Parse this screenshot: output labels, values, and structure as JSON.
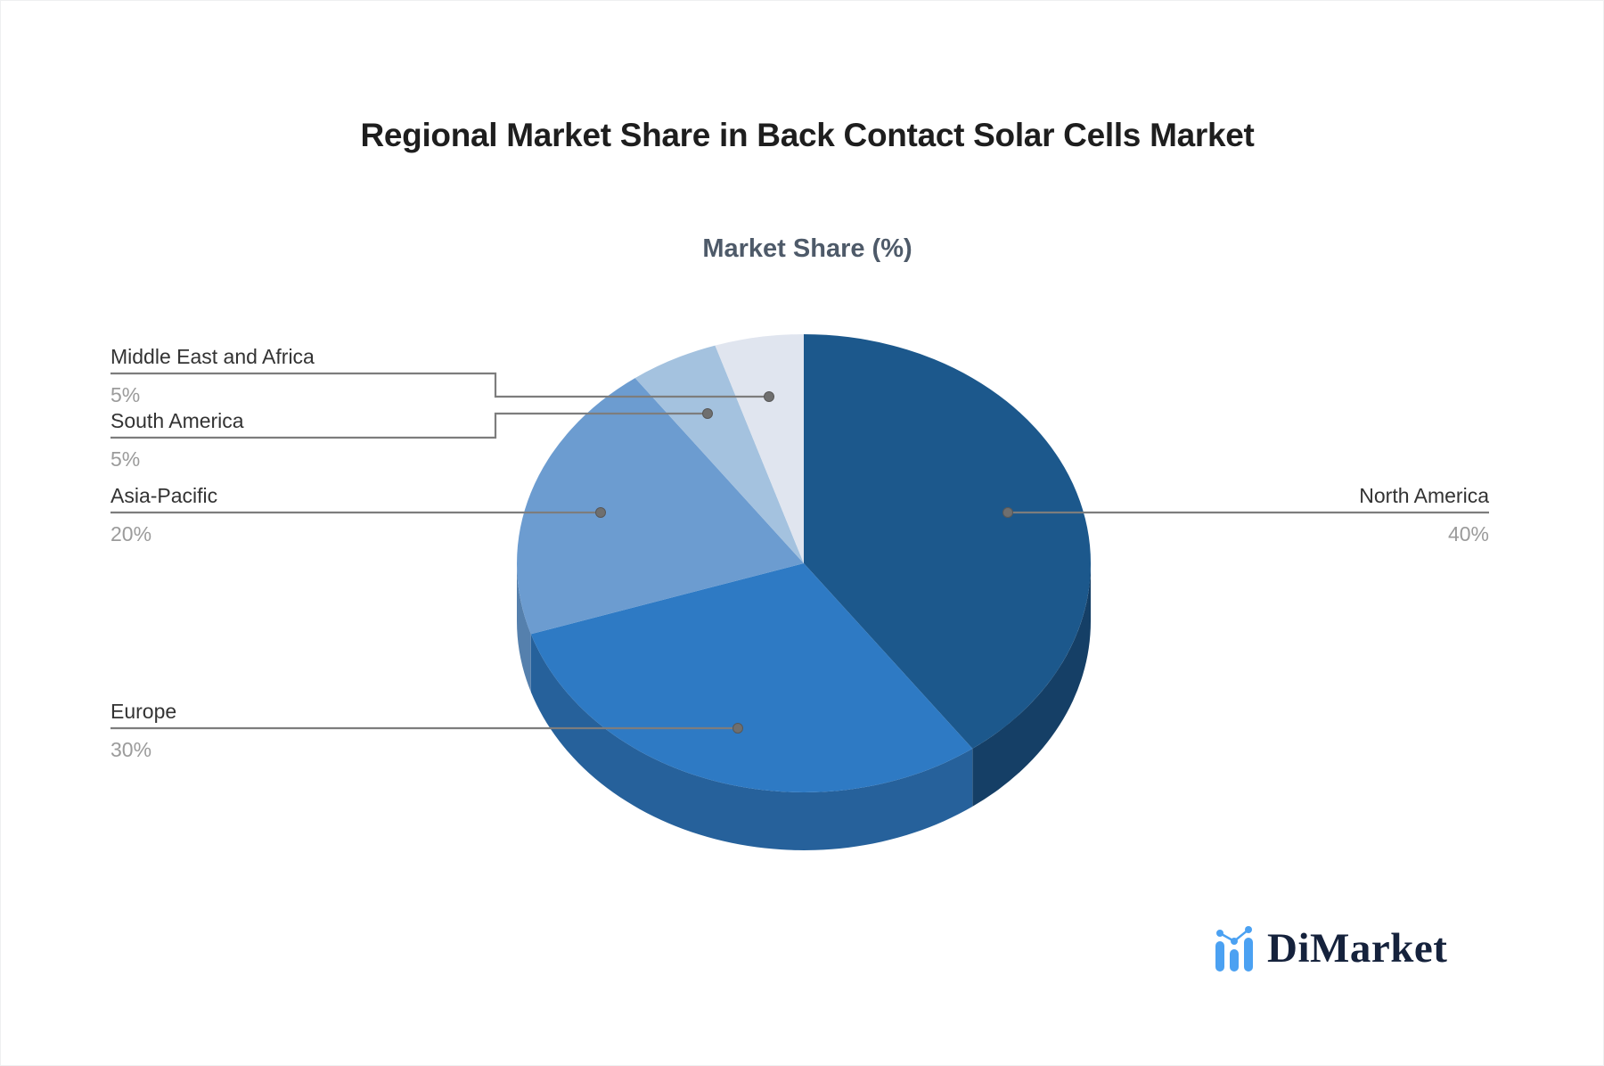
{
  "title": "Regional Market Share in Back Contact Solar Cells Market",
  "subtitle": "Market Share (%)",
  "logo": {
    "text": "DiMarket"
  },
  "chart_data": {
    "type": "pie",
    "title": "Regional Market Share in Back Contact Solar Cells Market",
    "subtitle": "Market Share (%)",
    "unit": "%",
    "style": "3d-pie",
    "direction": "clockwise",
    "start_angle_deg": 0,
    "labels_position": "outside-callout",
    "legend": false,
    "categories": [
      "North America",
      "Europe",
      "Asia-Pacific",
      "South America",
      "Middle East and Africa"
    ],
    "values": [
      40,
      30,
      20,
      5,
      5
    ],
    "slices": [
      {
        "label": "North America",
        "value": 40,
        "display": "40%",
        "color": "#1C588C",
        "rim_color": "#153F66",
        "label_side": "right"
      },
      {
        "label": "Europe",
        "value": 30,
        "display": "30%",
        "color": "#2E7AC4",
        "rim_color": "#26619B",
        "label_side": "left"
      },
      {
        "label": "Asia-Pacific",
        "value": 20,
        "display": "20%",
        "color": "#6C9CD0",
        "rim_color": "#5580AD",
        "label_side": "left"
      },
      {
        "label": "South America",
        "value": 5,
        "display": "5%",
        "color": "#A4C2DF",
        "rim_color": "#87A8C8",
        "label_side": "left"
      },
      {
        "label": "Middle East and Africa",
        "value": 5,
        "display": "5%",
        "color": "#E0E5EF",
        "rim_color": "#BAC5D6",
        "label_side": "left"
      }
    ],
    "leader_line_color": "#7d7d7d",
    "label_text_color": "#333333",
    "value_text_color": "#9b9b9b"
  }
}
